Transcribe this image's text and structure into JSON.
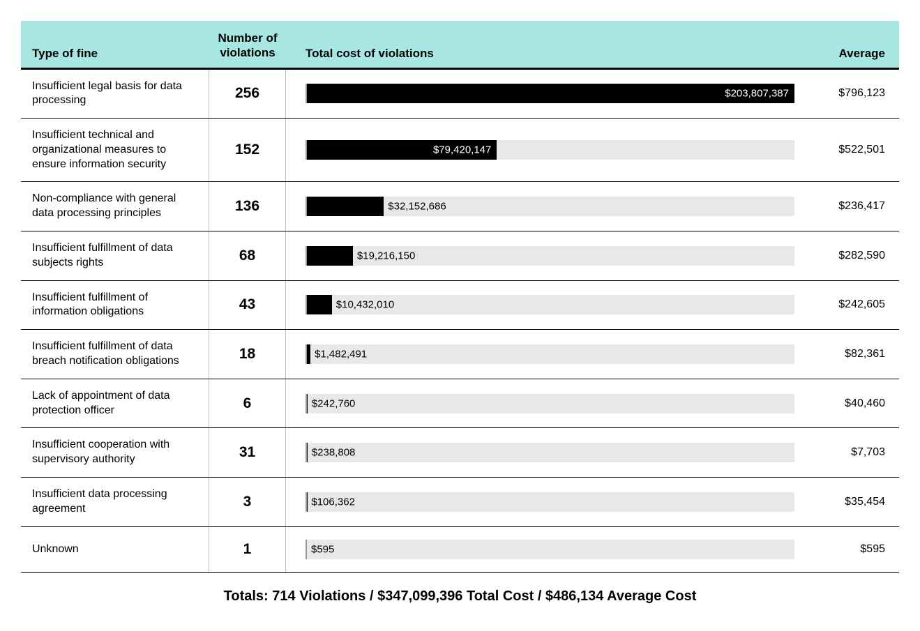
{
  "chart": {
    "type": "bar-table",
    "header_bg": "#a8e6e1",
    "header_border_bottom": "#000000",
    "row_border_color": "#000000",
    "vertical_divider_color": "#bfbfbf",
    "bar_track_color": "#e8e8e8",
    "bar_track_border_left": "#9a9a9a",
    "bar_fill_color": "#000000",
    "background_color": "#ffffff",
    "columns": {
      "type": "Type of fine",
      "violations": "Number of violations",
      "cost": "Total cost of violations",
      "avg": "Average"
    },
    "max_value": 203807387,
    "rows": [
      {
        "type": "Insufficient legal basis for data processing",
        "violations": "256",
        "cost_value": 203807387,
        "cost_label": "$203,807,387",
        "avg": "$796,123",
        "label_inside": true
      },
      {
        "type": "Insufficient technical and organizational measures to ensure information security",
        "violations": "152",
        "cost_value": 79420147,
        "cost_label": "$79,420,147",
        "avg": "$522,501",
        "label_inside": true
      },
      {
        "type": "Non-compliance with general data processing principles",
        "violations": "136",
        "cost_value": 32152686,
        "cost_label": "$32,152,686",
        "avg": "$236,417",
        "label_inside": false
      },
      {
        "type": "Insufficient fulfillment of data subjects rights",
        "violations": "68",
        "cost_value": 19216150,
        "cost_label": "$19,216,150",
        "avg": "$282,590",
        "label_inside": false
      },
      {
        "type": "Insufficient fulfillment of information obligations",
        "violations": "43",
        "cost_value": 10432010,
        "cost_label": "$10,432,010",
        "avg": "$242,605",
        "label_inside": false
      },
      {
        "type": "Insufficient fulfillment of data breach notification obligations",
        "violations": "18",
        "cost_value": 1482491,
        "cost_label": "$1,482,491",
        "avg": "$82,361",
        "label_inside": false
      },
      {
        "type": "Lack of appointment of data protection officer",
        "violations": "6",
        "cost_value": 242760,
        "cost_label": "$242,760",
        "avg": "$40,460",
        "label_inside": false
      },
      {
        "type": "Insufficient cooperation with supervisory authority",
        "violations": "31",
        "cost_value": 238808,
        "cost_label": "$238,808",
        "avg": "$7,703",
        "label_inside": false
      },
      {
        "type": "Insufficient data processing agreement",
        "violations": "3",
        "cost_value": 106362,
        "cost_label": "$106,362",
        "avg": "$35,454",
        "label_inside": false
      },
      {
        "type": "Unknown",
        "violations": "1",
        "cost_value": 595,
        "cost_label": "$595",
        "avg": "$595",
        "label_inside": false
      }
    ],
    "totals": "Totals: 714 Violations / $347,099,396 Total Cost / $486,134 Average Cost"
  }
}
